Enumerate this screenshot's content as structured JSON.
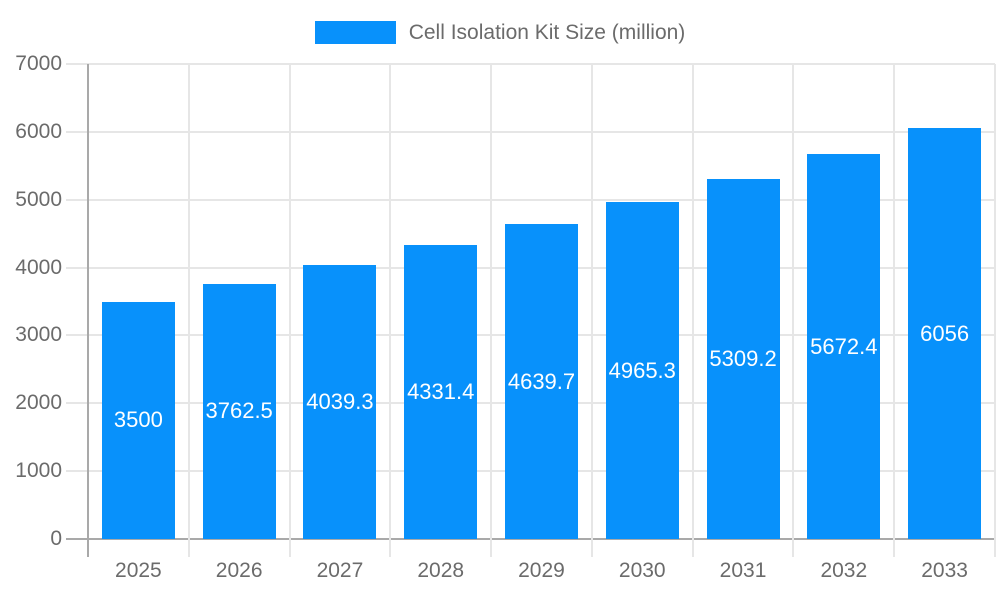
{
  "legend": {
    "label": "Cell Isolation Kit Size (million)"
  },
  "chart_data": {
    "type": "bar",
    "title": "Cell Isolation Kit Size (million)",
    "categories": [
      "2025",
      "2026",
      "2027",
      "2028",
      "2029",
      "2030",
      "2031",
      "2032",
      "2033"
    ],
    "values": [
      3500,
      3762.5,
      4039.3,
      4331.4,
      4639.7,
      4965.3,
      5309.2,
      5672.4,
      6056
    ],
    "value_labels": [
      "3500",
      "3762.5",
      "4039.3",
      "4331.4",
      "4639.7",
      "4965.3",
      "5309.2",
      "5672.4",
      "6056"
    ],
    "y_ticks": [
      0,
      1000,
      2000,
      3000,
      4000,
      5000,
      6000,
      7000
    ],
    "ylim": [
      0,
      7000
    ],
    "xlabel": "",
    "ylabel": "",
    "grid": true,
    "legend_position": "top",
    "colors": {
      "bar": "#0891fb",
      "gridline": "#e6e6e6",
      "baseline": "#a9a9a9",
      "axis_text": "#6b6b6b",
      "value_label": "#ffffff"
    }
  }
}
